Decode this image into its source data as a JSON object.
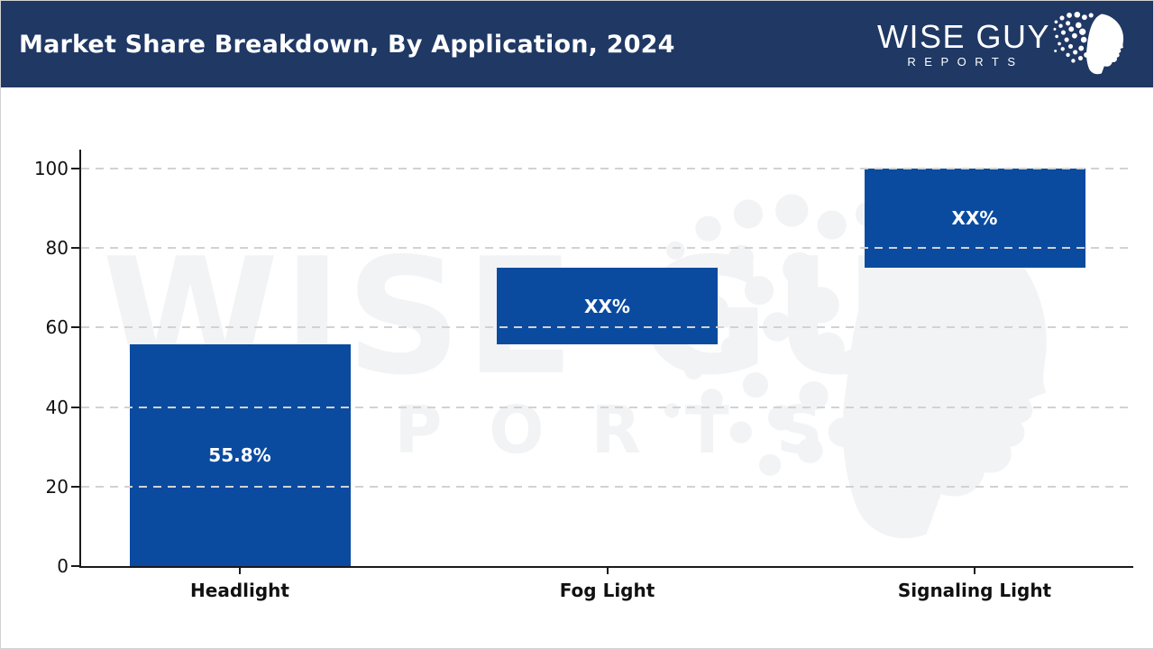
{
  "header": {
    "title": "Market Share Breakdown, By Application, 2024",
    "logo": {
      "line1": "WISE GUY",
      "line2": "REPORTS"
    }
  },
  "watermark": {
    "line1": "WISE GUY",
    "line2": "REPORTS"
  },
  "colors": {
    "header_bg": "#1f3864",
    "bar": "#0a4ba0",
    "grid": "#d2d2d2",
    "axis": "#1a1a1a",
    "bar_label": "#ffffff",
    "watermark": "#f2f3f5",
    "background": "#ffffff"
  },
  "chart_data": {
    "type": "bar",
    "subtype": "stacked-waterfall",
    "title": "Market Share Breakdown, By Application, 2024",
    "categories": [
      "Headlight",
      "Fog Light",
      "Signaling Light"
    ],
    "segments": [
      {
        "category": "Headlight",
        "start": 0,
        "end": 55.8,
        "label": "55.8%"
      },
      {
        "category": "Fog Light",
        "start": 55.8,
        "end": 75,
        "label": "XX%"
      },
      {
        "category": "Signaling Light",
        "start": 75,
        "end": 100,
        "label": "XX%"
      }
    ],
    "yticks": [
      0,
      20,
      40,
      60,
      80,
      100
    ],
    "ylim": [
      0,
      104.8
    ],
    "xlabel": "",
    "ylabel": "",
    "grid": "horizontal-dashed",
    "legend": "none"
  }
}
